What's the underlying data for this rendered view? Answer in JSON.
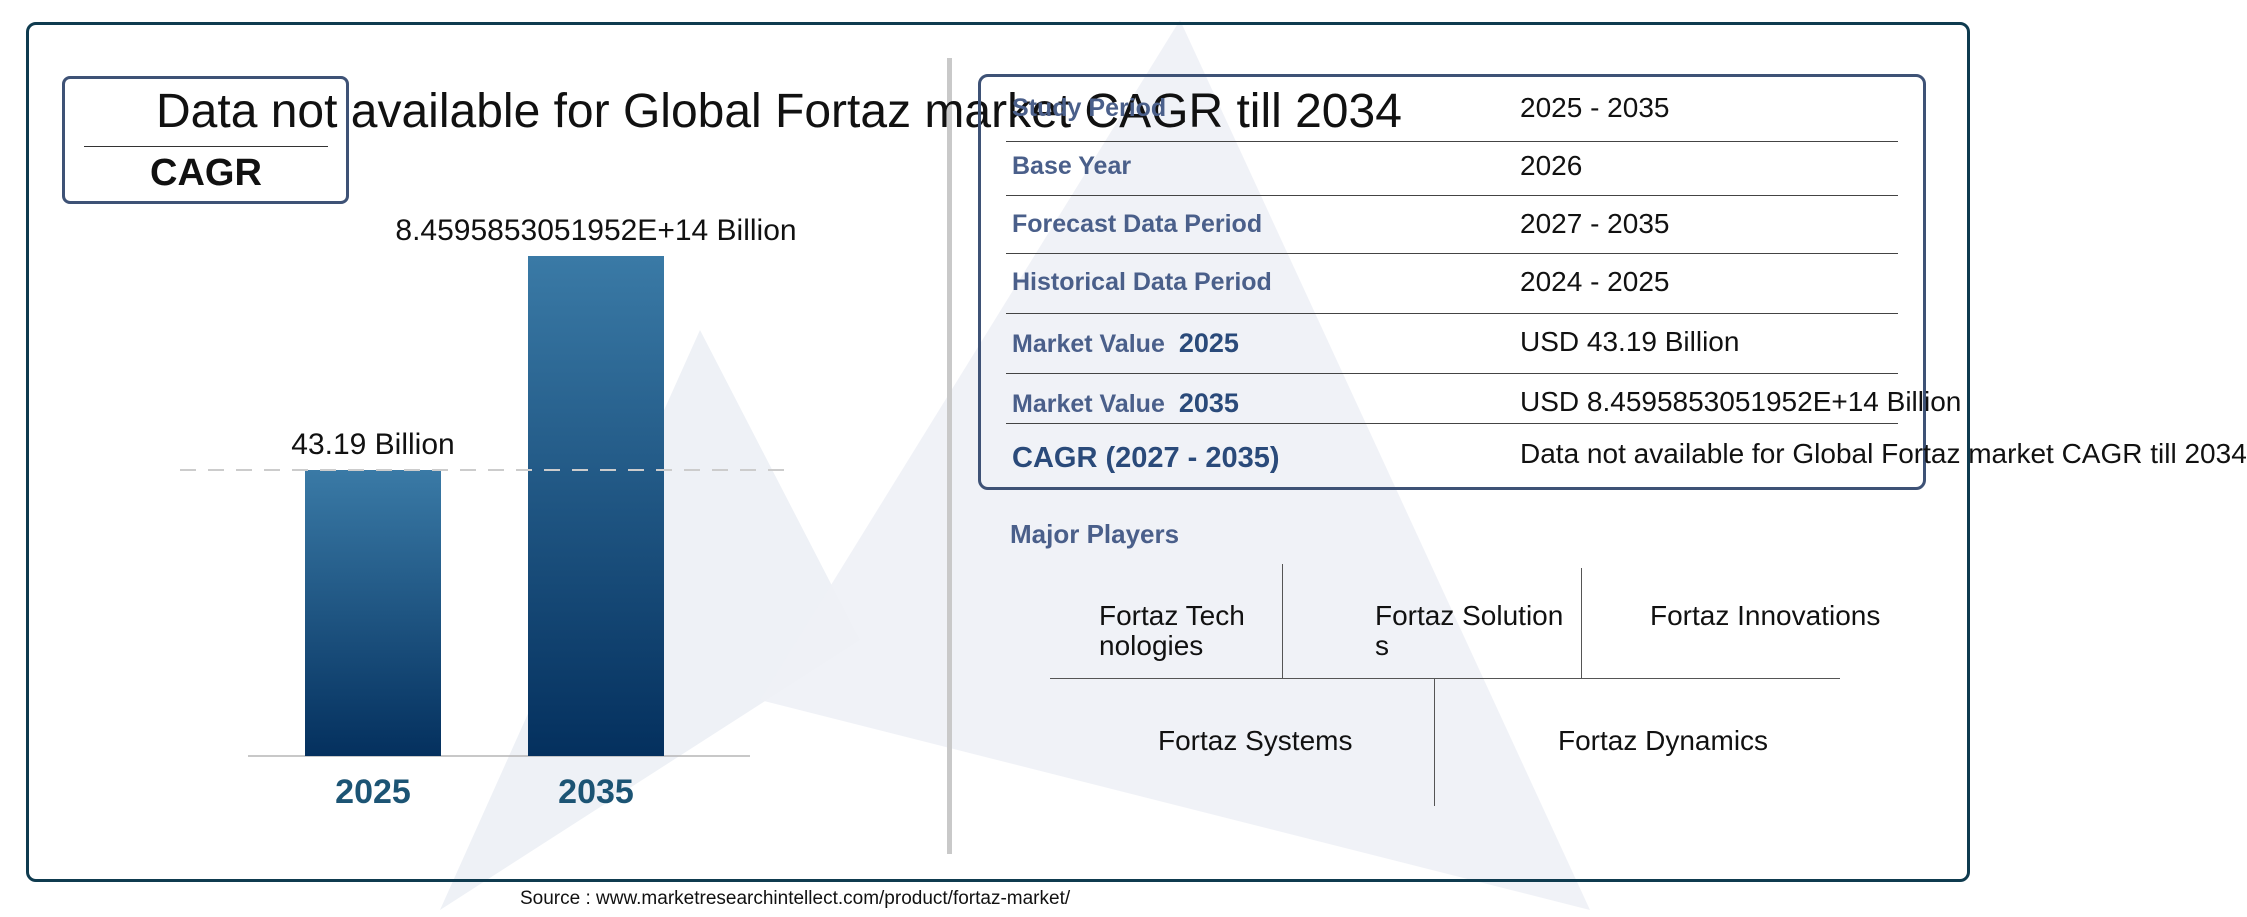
{
  "headline": "Data not available for Global Fortaz market CAGR till 2034",
  "cagr_label": "CAGR",
  "chart_data": {
    "type": "bar",
    "categories": [
      "2025",
      "2035"
    ],
    "values": [
      43.19,
      845958530519520
    ],
    "value_labels": [
      "43.19 Billion",
      "8.4595853051952E+14 Billion"
    ],
    "title": "",
    "xlabel": "",
    "ylabel": "",
    "grid": false,
    "colors": {
      "bar_top": "#3a7aa6",
      "bar_bottom": "#04305e",
      "tick": "#1c5474",
      "reference_line": "#cccccc"
    }
  },
  "info_table": [
    {
      "label": "Study Period",
      "year": "",
      "value": "2025 - 2035"
    },
    {
      "label": "Base Year",
      "year": "",
      "value": "2026"
    },
    {
      "label": "Forecast Data Period",
      "year": "",
      "value": "2027 - 2035"
    },
    {
      "label": "Historical Data Period",
      "year": "",
      "value": "2024 - 2025"
    },
    {
      "label": "Market Value",
      "year": "2025",
      "value": "USD 43.19 Billion"
    },
    {
      "label": "Market Value",
      "year": "2035",
      "value": "USD 8.4595853051952E+14 Billion"
    },
    {
      "label": "CAGR (2027 - 2035)",
      "year": "",
      "value": "Data not available for Global Fortaz market CAGR till 2034"
    }
  ],
  "players_title": "Major Players",
  "players": [
    "Fortaz Technologies",
    "Fortaz Solutions",
    "Fortaz Innovations",
    "Fortaz Systems",
    "Fortaz Dynamics"
  ],
  "source": "Source : www.marketresearchintellect.com/product/fortaz-market/"
}
